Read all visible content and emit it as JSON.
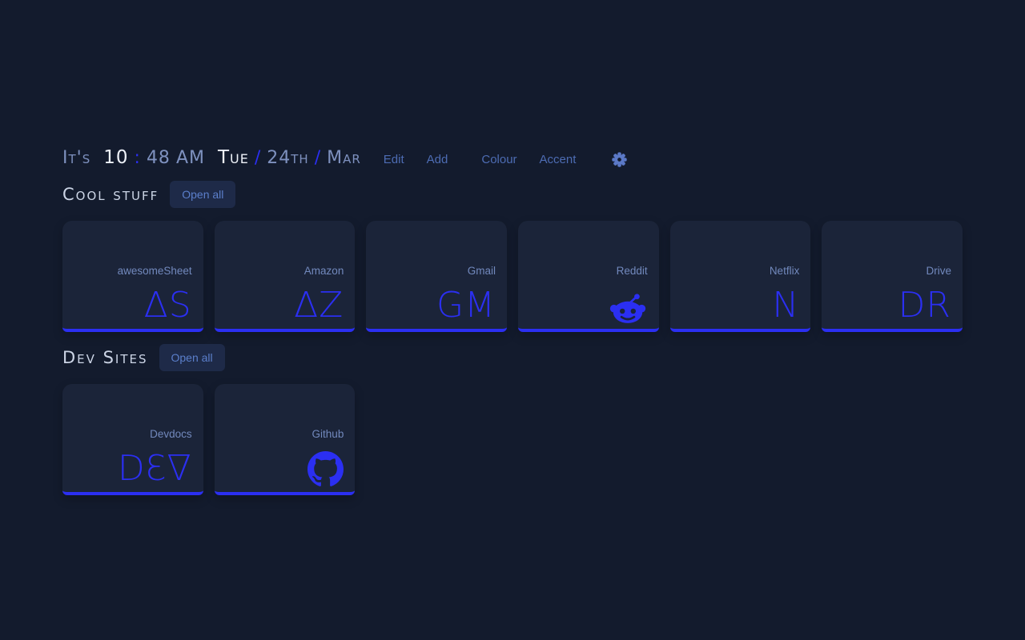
{
  "theme": {
    "background": "#131b2d",
    "card": "#1b2439",
    "accent": "#2b2ff2",
    "muted": "#7e91bf",
    "bright": "#edf1f8",
    "link": "#4d6cb3",
    "title": "#ccd5e6",
    "button_bg": "#1e2a48",
    "button_text": "#5b7fcb",
    "gear": "#5b79c7",
    "label": "#7289bd"
  },
  "clock": {
    "segments": [
      {
        "text": "It's",
        "style": "muted",
        "gap": true
      },
      {
        "text": "10",
        "style": "bright"
      },
      {
        "text": ":",
        "style": "accent"
      },
      {
        "text": "48",
        "style": "muted"
      },
      {
        "text": "AM",
        "style": "muted",
        "gap": true
      },
      {
        "text": "Tue",
        "style": "bright"
      },
      {
        "text": "/",
        "style": "accent"
      },
      {
        "text": "24th",
        "style": "muted"
      },
      {
        "text": "/",
        "style": "accent"
      },
      {
        "text": "Mar",
        "style": "muted"
      }
    ]
  },
  "menu": {
    "items": [
      {
        "label": "Edit"
      },
      {
        "label": "Add"
      },
      {
        "label": "Colour",
        "spaced": true
      },
      {
        "label": "Accent"
      }
    ]
  },
  "sections": [
    {
      "title": "Cool stuff",
      "open_all_label": "Open all",
      "cards": [
        {
          "name": "awesomeSheet",
          "type": "monogram",
          "display": "ΔS"
        },
        {
          "name": "Amazon",
          "type": "monogram",
          "display": "ΔZ"
        },
        {
          "name": "Gmail",
          "type": "monogram",
          "display": "GM"
        },
        {
          "name": "Reddit",
          "type": "icon",
          "icon": "reddit-logo"
        },
        {
          "name": "Netflix",
          "type": "monogram",
          "display": "N"
        },
        {
          "name": "Drive",
          "type": "monogram",
          "display": "DR"
        }
      ]
    },
    {
      "title": "Dev Sites",
      "open_all_label": "Open all",
      "cards": [
        {
          "name": "Devdocs",
          "type": "monogram",
          "display": "DƐ∇"
        },
        {
          "name": "Github",
          "type": "icon",
          "icon": "github-logo"
        }
      ]
    }
  ]
}
